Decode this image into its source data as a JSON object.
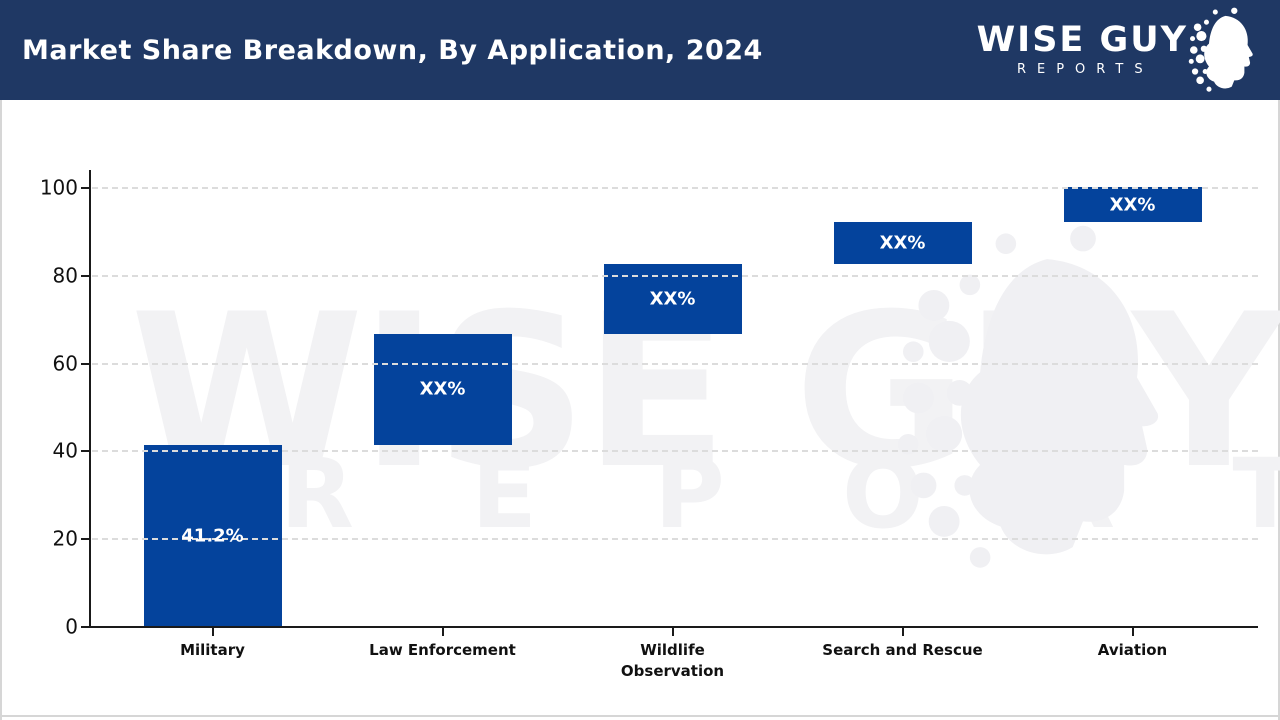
{
  "header": {
    "title": "Market Share Breakdown, By Application, 2024",
    "bg_color": "#1f3864",
    "logo": {
      "line1": "WISE GUY",
      "line2": "REPORTS"
    }
  },
  "watermark": {
    "line1": "WISE GUY",
    "line2": "R E P O R T S"
  },
  "chart_data": {
    "type": "bar",
    "variant": "waterfall-stacked-percent",
    "title": "Market Share Breakdown, By Application, 2024",
    "categories": [
      "Military",
      "Law Enforcement",
      "Wildlife Observation",
      "Search and Rescue",
      "Aviation"
    ],
    "segments": [
      {
        "category": "Military",
        "tick_label": "Military",
        "start": 0,
        "end": 41.2,
        "value_label": "41.2%"
      },
      {
        "category": "Law Enforcement",
        "tick_label": "Law Enforcement",
        "start": 41.2,
        "end": 66.6,
        "value_label": "XX%"
      },
      {
        "category": "Wildlife Observation",
        "tick_label": "Wildlife\nObservation",
        "start": 66.6,
        "end": 82.5,
        "value_label": "XX%"
      },
      {
        "category": "Search and Rescue",
        "tick_label": "Search and Rescue",
        "start": 82.5,
        "end": 92.0,
        "value_label": "XX%"
      },
      {
        "category": "Aviation",
        "tick_label": "Aviation",
        "start": 92.0,
        "end": 100.0,
        "value_label": "XX%"
      }
    ],
    "y_ticks": [
      0,
      20,
      40,
      60,
      80,
      100
    ],
    "ylim": [
      0,
      104
    ],
    "grid": "horizontal-dashed",
    "legend": "none",
    "bar_color": "#04439c",
    "bar_label_color": "#ffffff"
  }
}
